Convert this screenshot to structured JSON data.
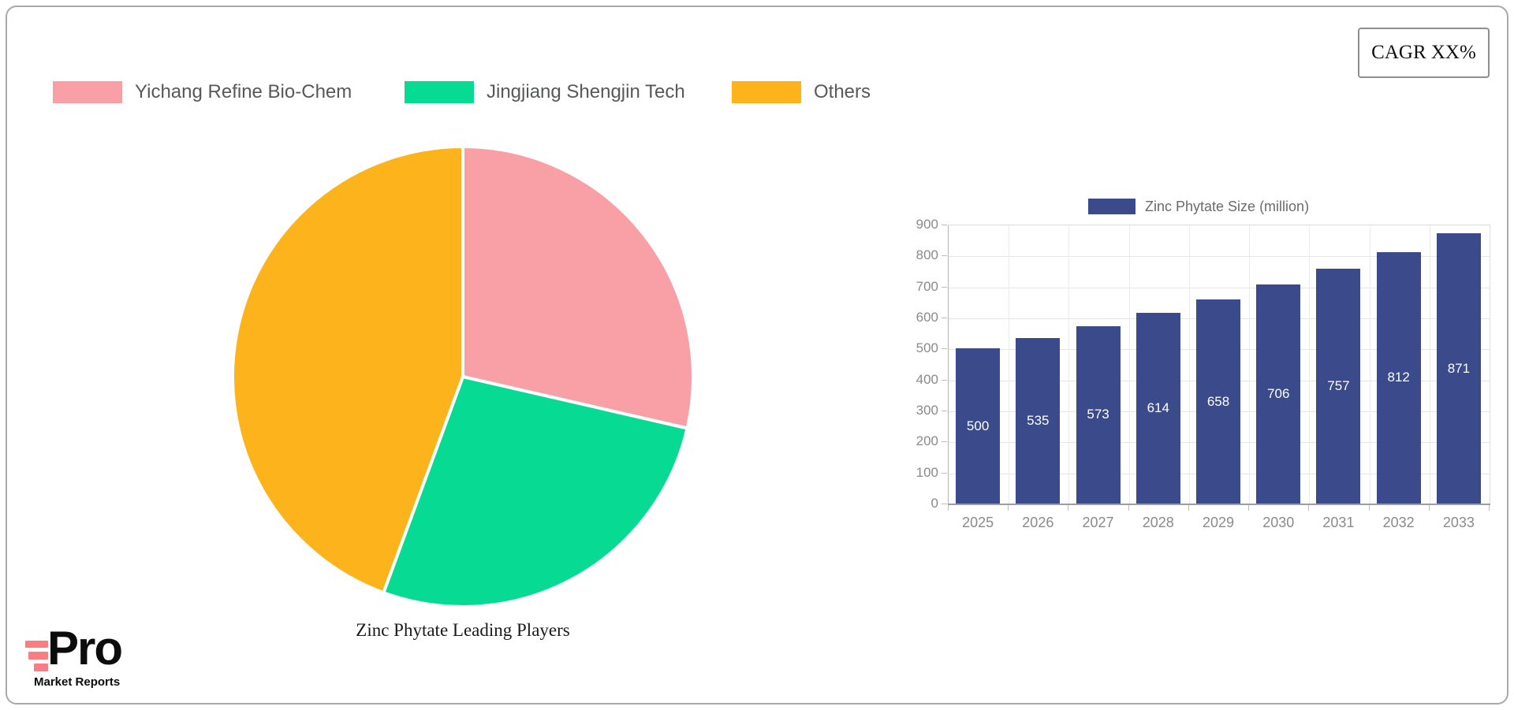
{
  "cagr_box": {
    "label": "CAGR XX%"
  },
  "pie_legend": [
    {
      "label": "Yichang Refine Bio-Chem",
      "color": "#F9A0A6"
    },
    {
      "label": "Jingjiang Shengjin Tech",
      "color": "#07DB93"
    },
    {
      "label": "Others",
      "color": "#FCB31C"
    }
  ],
  "logo": {
    "name": "Pro",
    "subtitle": "Market Reports",
    "bar_color": "#F87E81"
  },
  "chart_data": [
    {
      "type": "pie",
      "title": "Zinc Phytate Leading Players",
      "labels": [
        "Yichang Refine Bio-Chem",
        "Jingjiang Shengjin Tech",
        "Others"
      ],
      "values": [
        28.6,
        27.0,
        44.4
      ],
      "unit": "approx % share (estimated from slice angles)",
      "colors": [
        "#F9A0A6",
        "#07DB93",
        "#FCB31C"
      ],
      "start_angle_deg": 0,
      "direction": "clockwise",
      "legend_position": "top-left"
    },
    {
      "type": "bar",
      "legend": "Zinc Phytate Size (million)",
      "categories": [
        "2025",
        "2026",
        "2027",
        "2028",
        "2029",
        "2030",
        "2031",
        "2032",
        "2033"
      ],
      "values": [
        500,
        535,
        573,
        614,
        658,
        706,
        757,
        812,
        871
      ],
      "bar_color": "#3a4a8b",
      "ylim": [
        0,
        900
      ],
      "ytick_step": 100,
      "grid": true,
      "value_labels": "inside-white"
    }
  ]
}
